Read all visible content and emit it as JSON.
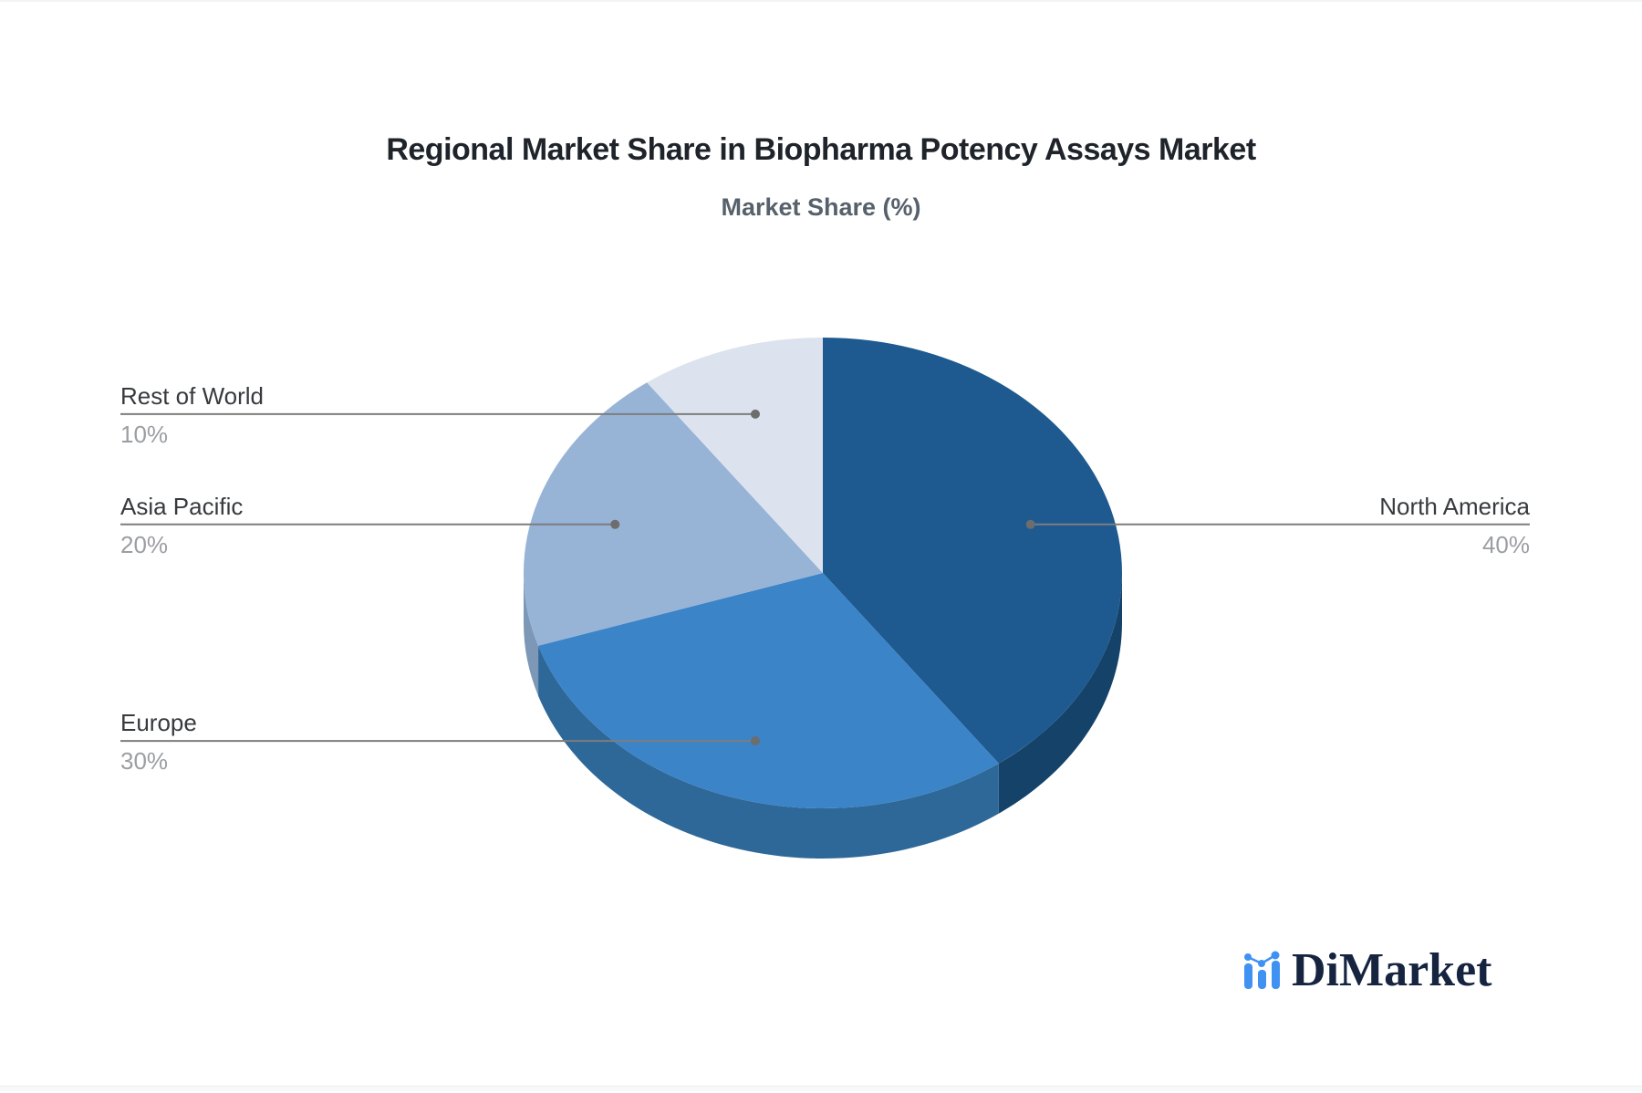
{
  "title": "Regional Market Share in Biopharma Potency Assays Market",
  "subtitle": "Market Share (%)",
  "brand": {
    "name": "DiMarket",
    "icon": "bar-line-chart-icon",
    "icon_color": "#3f92f2",
    "text_color": "#162440"
  },
  "chart_data": {
    "type": "pie",
    "style": "3d-pie",
    "title": "Regional Market Share in Biopharma Potency Assays Market",
    "subtitle": "Market Share (%)",
    "unit": "%",
    "start_angle_deg": 0,
    "direction": "clockwise",
    "legend": "none",
    "labels": "leader-lines-with-name-and-percent",
    "slices": [
      {
        "label": "North America",
        "value": 40,
        "pct_label": "40%",
        "color": "#1e5a8f",
        "side_color": "#154268",
        "label_side": "right"
      },
      {
        "label": "Europe",
        "value": 30,
        "pct_label": "30%",
        "color": "#3b84c8",
        "side_color": "#2e6898",
        "label_side": "left"
      },
      {
        "label": "Asia Pacific",
        "value": 20,
        "pct_label": "20%",
        "color": "#97b4d7",
        "side_color": "#7d97b6",
        "label_side": "left"
      },
      {
        "label": "Rest of World",
        "value": 10,
        "pct_label": "10%",
        "color": "#dce3ee",
        "side_color": "#b8c3d6",
        "label_side": "left"
      }
    ],
    "leader_line_color": "#7d7d7d",
    "leader_dot_color": "#6d6d6d",
    "label_name_color": "#373a3e",
    "label_pct_color": "#9b9ea2"
  }
}
